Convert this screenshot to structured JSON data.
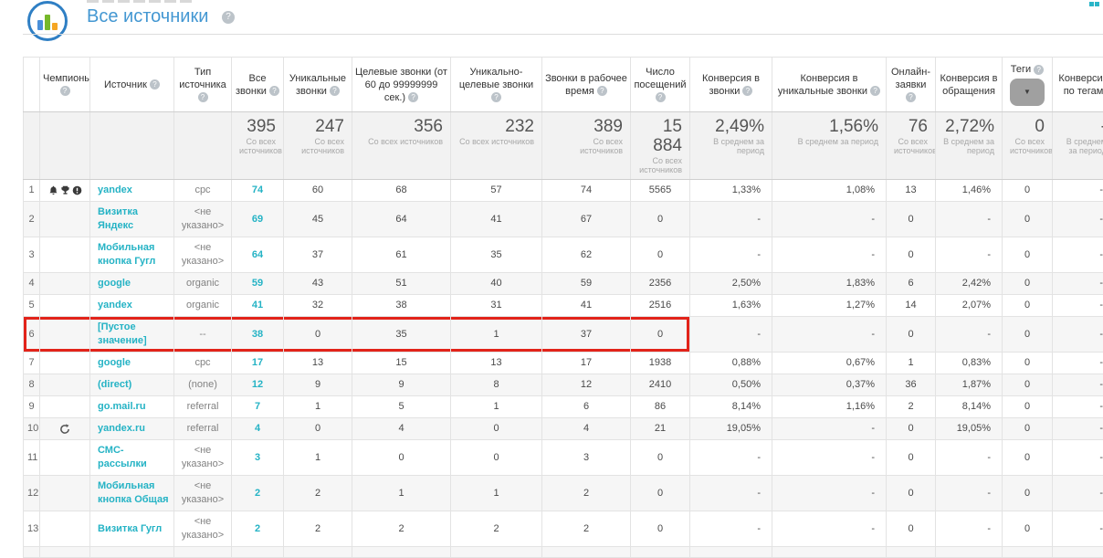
{
  "header": {
    "title": "Все источники",
    "icons": {
      "info": "?",
      "dropdown_arrow": "▼"
    }
  },
  "table": {
    "columns": [
      {
        "key": "num",
        "label": "",
        "info": false
      },
      {
        "key": "champions",
        "label": "Чемпионы",
        "info": true
      },
      {
        "key": "source",
        "label": "Источник",
        "info": true
      },
      {
        "key": "type",
        "label": "Тип источника",
        "info": true
      },
      {
        "key": "all_calls",
        "label": "Все звонки",
        "info": true
      },
      {
        "key": "unique_calls",
        "label": "Уникальные звонки",
        "info": true
      },
      {
        "key": "target_calls",
        "label": "Целевые звонки (от 60 до 99999999 сек.)",
        "info": true
      },
      {
        "key": "unique_target_calls",
        "label": "Уникально-целевые звонки",
        "info": true
      },
      {
        "key": "work_time_calls",
        "label": "Звонки в рабочее время",
        "info": true
      },
      {
        "key": "visits",
        "label": "Число посещений",
        "info": true
      },
      {
        "key": "conv_calls",
        "label": "Конверсия в звонки",
        "info": true
      },
      {
        "key": "conv_unique",
        "label": "Конверсия в уникальные звонки",
        "info": true
      },
      {
        "key": "online_requests",
        "label": "Онлайн-заявки",
        "info": true
      },
      {
        "key": "conv_appeals",
        "label": "Конверсия в обращения",
        "info": false
      },
      {
        "key": "tags",
        "label": "Теги",
        "info": true,
        "dropdown": true
      },
      {
        "key": "conv_tags",
        "label": "Конверсия по тегам",
        "info": false
      }
    ],
    "summary": {
      "values": {
        "all_calls": "395",
        "unique_calls": "247",
        "target_calls": "356",
        "unique_target_calls": "232",
        "work_time_calls": "389",
        "visits": "15 884",
        "conv_calls": "2,49%",
        "conv_unique": "1,56%",
        "online_requests": "76",
        "conv_appeals": "2,72%",
        "tags": "0",
        "conv_tags": "-"
      },
      "caption_sources": "Со всех источников",
      "caption_period": "В среднем за период"
    },
    "rows": [
      {
        "num": "1",
        "champions": [
          "bell",
          "trophy",
          "alert"
        ],
        "source": "yandex",
        "type": "cpc",
        "all_calls": "74",
        "unique_calls": "60",
        "target_calls": "68",
        "unique_target_calls": "57",
        "work_time_calls": "74",
        "visits": "5565",
        "conv_calls": "1,33%",
        "conv_unique": "1,08%",
        "online_requests": "13",
        "conv_appeals": "1,46%",
        "tags": "0",
        "conv_tags": "-",
        "highlighted": false
      },
      {
        "num": "2",
        "champions": [],
        "source": "Визитка Яндекс",
        "type": "<не указано>",
        "all_calls": "69",
        "unique_calls": "45",
        "target_calls": "64",
        "unique_target_calls": "41",
        "work_time_calls": "67",
        "visits": "0",
        "conv_calls": "-",
        "conv_unique": "-",
        "online_requests": "0",
        "conv_appeals": "-",
        "tags": "0",
        "conv_tags": "-",
        "highlighted": false
      },
      {
        "num": "3",
        "champions": [],
        "source": "Мобильная кнопка Гугл",
        "type": "<не указано>",
        "all_calls": "64",
        "unique_calls": "37",
        "target_calls": "61",
        "unique_target_calls": "35",
        "work_time_calls": "62",
        "visits": "0",
        "conv_calls": "-",
        "conv_unique": "-",
        "online_requests": "0",
        "conv_appeals": "-",
        "tags": "0",
        "conv_tags": "-",
        "highlighted": false
      },
      {
        "num": "4",
        "champions": [],
        "source": "google",
        "type": "organic",
        "all_calls": "59",
        "unique_calls": "43",
        "target_calls": "51",
        "unique_target_calls": "40",
        "work_time_calls": "59",
        "visits": "2356",
        "conv_calls": "2,50%",
        "conv_unique": "1,83%",
        "online_requests": "6",
        "conv_appeals": "2,42%",
        "tags": "0",
        "conv_tags": "-",
        "highlighted": false
      },
      {
        "num": "5",
        "champions": [],
        "source": "yandex",
        "type": "organic",
        "all_calls": "41",
        "unique_calls": "32",
        "target_calls": "38",
        "unique_target_calls": "31",
        "work_time_calls": "41",
        "visits": "2516",
        "conv_calls": "1,63%",
        "conv_unique": "1,27%",
        "online_requests": "14",
        "conv_appeals": "2,07%",
        "tags": "0",
        "conv_tags": "-",
        "highlighted": false
      },
      {
        "num": "6",
        "champions": [],
        "source": "[Пустое значение]",
        "type": "--",
        "all_calls": "38",
        "unique_calls": "0",
        "target_calls": "35",
        "unique_target_calls": "1",
        "work_time_calls": "37",
        "visits": "0",
        "conv_calls": "-",
        "conv_unique": "-",
        "online_requests": "0",
        "conv_appeals": "-",
        "tags": "0",
        "conv_tags": "-",
        "highlighted": true
      },
      {
        "num": "7",
        "champions": [],
        "source": "google",
        "type": "cpc",
        "all_calls": "17",
        "unique_calls": "13",
        "target_calls": "15",
        "unique_target_calls": "13",
        "work_time_calls": "17",
        "visits": "1938",
        "conv_calls": "0,88%",
        "conv_unique": "0,67%",
        "online_requests": "1",
        "conv_appeals": "0,83%",
        "tags": "0",
        "conv_tags": "-",
        "highlighted": false
      },
      {
        "num": "8",
        "champions": [],
        "source": "(direct)",
        "type": "(none)",
        "all_calls": "12",
        "unique_calls": "9",
        "target_calls": "9",
        "unique_target_calls": "8",
        "work_time_calls": "12",
        "visits": "2410",
        "conv_calls": "0,50%",
        "conv_unique": "0,37%",
        "online_requests": "36",
        "conv_appeals": "1,87%",
        "tags": "0",
        "conv_tags": "-",
        "highlighted": false
      },
      {
        "num": "9",
        "champions": [],
        "source": "go.mail.ru",
        "type": "referral",
        "all_calls": "7",
        "unique_calls": "1",
        "target_calls": "5",
        "unique_target_calls": "1",
        "work_time_calls": "6",
        "visits": "86",
        "conv_calls": "8,14%",
        "conv_unique": "1,16%",
        "online_requests": "2",
        "conv_appeals": "8,14%",
        "tags": "0",
        "conv_tags": "-",
        "highlighted": false
      },
      {
        "num": "10",
        "champions": [
          "refresh"
        ],
        "source": "yandex.ru",
        "type": "referral",
        "all_calls": "4",
        "unique_calls": "0",
        "target_calls": "4",
        "unique_target_calls": "0",
        "work_time_calls": "4",
        "visits": "21",
        "conv_calls": "19,05%",
        "conv_unique": "-",
        "online_requests": "0",
        "conv_appeals": "19,05%",
        "tags": "0",
        "conv_tags": "-",
        "highlighted": false
      },
      {
        "num": "11",
        "champions": [],
        "source": "СМС-рассылки",
        "type": "<не указано>",
        "all_calls": "3",
        "unique_calls": "1",
        "target_calls": "0",
        "unique_target_calls": "0",
        "work_time_calls": "3",
        "visits": "0",
        "conv_calls": "-",
        "conv_unique": "-",
        "online_requests": "0",
        "conv_appeals": "-",
        "tags": "0",
        "conv_tags": "-",
        "highlighted": false
      },
      {
        "num": "12",
        "champions": [],
        "source": "Мобильная кнопка Общая",
        "type": "<не указано>",
        "all_calls": "2",
        "unique_calls": "2",
        "target_calls": "1",
        "unique_target_calls": "1",
        "work_time_calls": "2",
        "visits": "0",
        "conv_calls": "-",
        "conv_unique": "-",
        "online_requests": "0",
        "conv_appeals": "-",
        "tags": "0",
        "conv_tags": "-",
        "highlighted": false
      },
      {
        "num": "13",
        "champions": [],
        "source": "Визитка Гугл",
        "type": "<не указано>",
        "all_calls": "2",
        "unique_calls": "2",
        "target_calls": "2",
        "unique_target_calls": "2",
        "work_time_calls": "2",
        "visits": "0",
        "conv_calls": "-",
        "conv_unique": "-",
        "online_requests": "0",
        "conv_appeals": "-",
        "tags": "0",
        "conv_tags": "-",
        "highlighted": false
      }
    ]
  },
  "colors": {
    "accent_teal": "#25b3c5",
    "title_blue": "#4397d2",
    "highlight_red": "#e2231a",
    "bar_blue": "#4a90d9",
    "bar_green": "#76b82a",
    "bar_orange": "#f5a623"
  }
}
